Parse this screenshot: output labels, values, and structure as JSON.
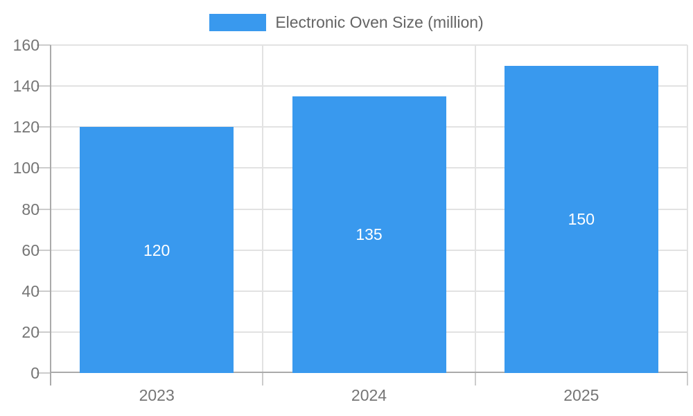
{
  "legend": {
    "label": "Electronic Oven Size (million)"
  },
  "colors": {
    "bar_blue": "#3999ee",
    "gridline": "#e2e2e2",
    "axis_line": "#aaaaaa",
    "tick": "#cccccc",
    "axis_label": "#757575",
    "legend_label": "#646464",
    "data_label": "#ffffff",
    "background": "#ffffff"
  },
  "chart_data": {
    "type": "bar",
    "title": "",
    "categories": [
      "2023",
      "2024",
      "2025"
    ],
    "series": [
      {
        "name": "Electronic Oven Size (million)",
        "values": [
          120,
          135,
          150
        ]
      }
    ],
    "data_labels": [
      "120",
      "135",
      "150"
    ],
    "xlabel": "",
    "ylabel": "",
    "ylim": [
      0,
      160
    ],
    "yticks": [
      0,
      20,
      40,
      60,
      80,
      100,
      120,
      140,
      160
    ],
    "grid": true,
    "legend_position": "top"
  }
}
